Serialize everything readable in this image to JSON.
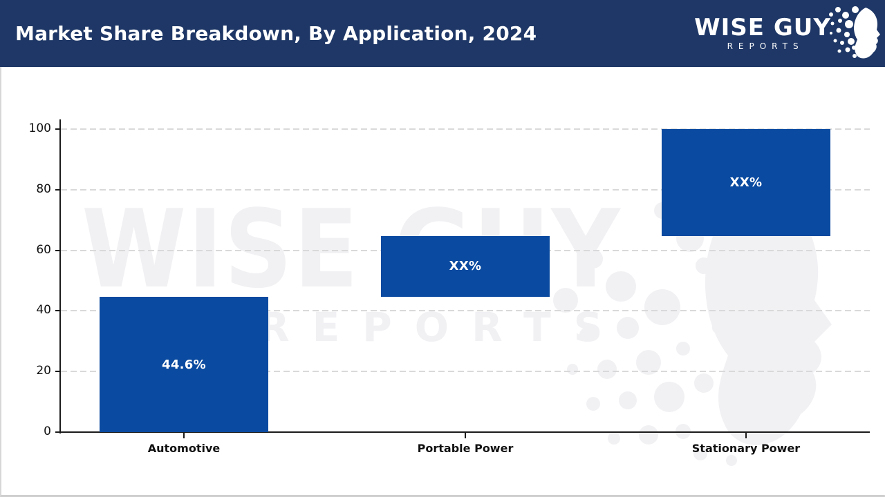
{
  "header": {
    "title": "Market Share Breakdown, By Application, 2024",
    "logo": {
      "name": "WISE GUY",
      "sub": "REPORTS"
    }
  },
  "watermark": {
    "line1": "WISE GUY",
    "line2": "REPORTS"
  },
  "chart_data": {
    "type": "bar",
    "subtype": "waterfall-floating-bars",
    "title": "Market Share Breakdown, By Application, 2024",
    "categories": [
      "Automotive",
      "Portable Power",
      "Stationary Power"
    ],
    "series": [
      {
        "name": "Market Share",
        "segments": [
          {
            "category": "Automotive",
            "base": 0,
            "value": 44.6,
            "top": 44.6,
            "label": "44.6%"
          },
          {
            "category": "Portable Power",
            "base": 44.6,
            "value": 20.2,
            "top": 64.8,
            "label": "XX%"
          },
          {
            "category": "Stationary Power",
            "base": 64.8,
            "value": 35.2,
            "top": 100,
            "label": "XX%"
          }
        ]
      }
    ],
    "xlabel": "",
    "ylabel": "",
    "ylim": [
      0,
      100
    ],
    "yticks": [
      0,
      20,
      40,
      60,
      80,
      100
    ],
    "grid": "horizontal-dashed",
    "legend": "none"
  },
  "colors": {
    "header_bg": "#1e3766",
    "bar": "#0a4aa0",
    "grid": "#d9d9d9",
    "axis": "#1a1a1a",
    "value_label": "#ffffff",
    "watermark": "#f1f1f4"
  }
}
